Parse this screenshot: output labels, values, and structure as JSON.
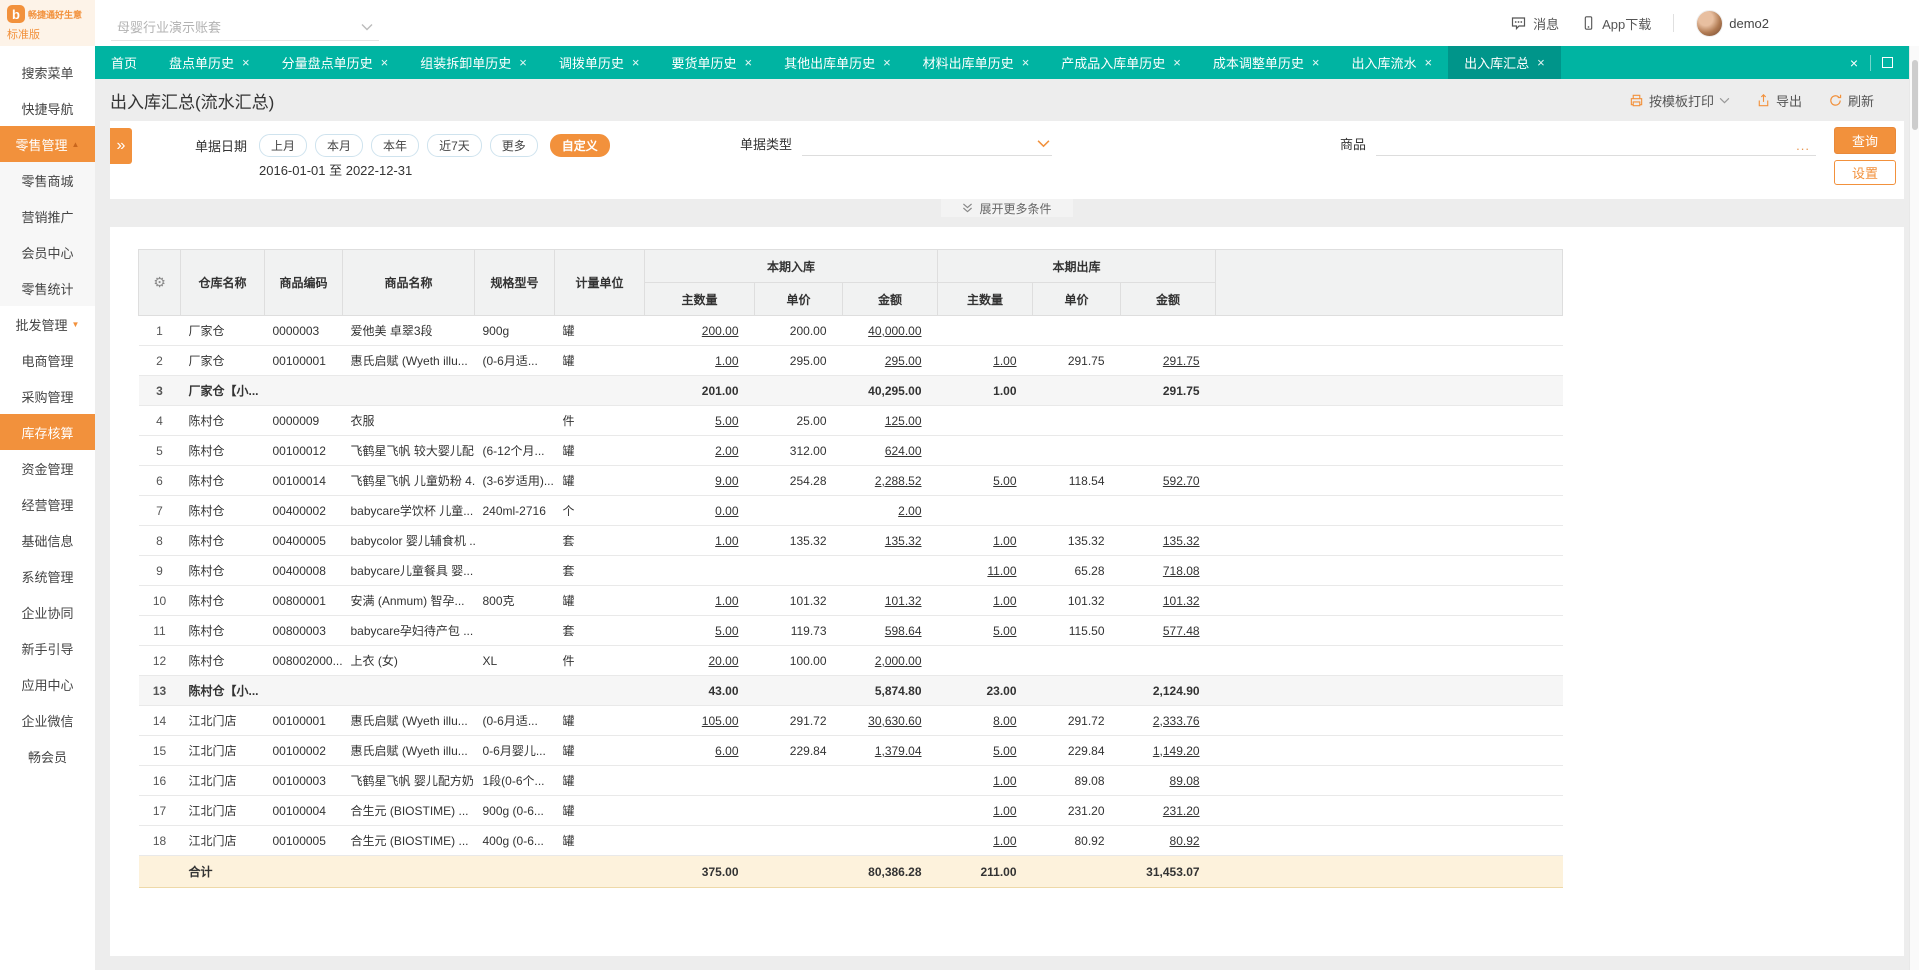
{
  "topbar": {
    "logo_title": "畅捷通好生意",
    "logo_subtitle": "标准版",
    "logo_glyph": "b",
    "account_name": "母婴行业演示账套",
    "messages_label": "消息",
    "app_download_label": "App下载",
    "username": "demo2"
  },
  "tabbar": {
    "tabs": [
      {
        "label": "首页",
        "closable": false,
        "active": false
      },
      {
        "label": "盘点单历史",
        "closable": true,
        "active": false
      },
      {
        "label": "分量盘点单历史",
        "closable": true,
        "active": false
      },
      {
        "label": "组装拆卸单历史",
        "closable": true,
        "active": false
      },
      {
        "label": "调拨单历史",
        "closable": true,
        "active": false
      },
      {
        "label": "要货单历史",
        "closable": true,
        "active": false
      },
      {
        "label": "其他出库单历史",
        "closable": true,
        "active": false
      },
      {
        "label": "材料出库单历史",
        "closable": true,
        "active": false
      },
      {
        "label": "产成品入库单历史",
        "closable": true,
        "active": false
      },
      {
        "label": "成本调整单历史",
        "closable": true,
        "active": false
      },
      {
        "label": "出入库流水",
        "closable": true,
        "active": false
      },
      {
        "label": "出入库汇总",
        "closable": true,
        "active": true
      }
    ],
    "close_all_icon": "×"
  },
  "sidebar": {
    "items": [
      {
        "label": "搜索菜单",
        "type": "plain"
      },
      {
        "label": "快捷导航",
        "type": "plain"
      },
      {
        "label": "零售管理",
        "type": "group-open"
      },
      {
        "label": "零售商城",
        "type": "sub"
      },
      {
        "label": "营销推广",
        "type": "sub"
      },
      {
        "label": "会员中心",
        "type": "sub"
      },
      {
        "label": "零售统计",
        "type": "sub"
      },
      {
        "label": "批发管理",
        "type": "group-closed"
      },
      {
        "label": "电商管理",
        "type": "plain"
      },
      {
        "label": "采购管理",
        "type": "plain"
      },
      {
        "label": "库存核算",
        "type": "active"
      },
      {
        "label": "资金管理",
        "type": "plain"
      },
      {
        "label": "经营管理",
        "type": "plain"
      },
      {
        "label": "基础信息",
        "type": "plain"
      },
      {
        "label": "系统管理",
        "type": "plain"
      },
      {
        "label": "企业协同",
        "type": "plain"
      },
      {
        "label": "新手引导",
        "type": "plain"
      },
      {
        "label": "应用中心",
        "type": "plain"
      },
      {
        "label": "企业微信",
        "type": "plain"
      },
      {
        "label": "畅会员",
        "type": "plain"
      }
    ]
  },
  "page": {
    "title": "出入库汇总(流水汇总)",
    "print_label": "按模板打印",
    "export_label": "导出",
    "refresh_label": "刷新"
  },
  "filters": {
    "date_label": "单据日期",
    "date_pills": [
      "上月",
      "本月",
      "本年",
      "近7天",
      "更多"
    ],
    "custom_pill": "自定义",
    "date_range": "2016-01-01 至 2022-12-31",
    "doc_type_label": "单据类型",
    "product_label": "商品",
    "product_more": "...",
    "query_button": "查询",
    "settings_button": "设置",
    "expand_more_label": "展开更多条件",
    "collapse_glyph": "»"
  },
  "colors": {
    "teal": "#00b4a2",
    "teal_active": "#00958a",
    "orange": "#f2913c",
    "total_row_bg": "#fdf2dc"
  },
  "table": {
    "icons": {
      "column_settings": "⚙"
    },
    "col_warehouse": "仓库名称",
    "col_code": "商品编码",
    "col_name": "商品名称",
    "col_spec": "规格型号",
    "col_unit": "计量单位",
    "group_in": "本期入库",
    "group_out": "本期出库",
    "col_qty": "主数量",
    "col_price": "单价",
    "col_amount": "金额",
    "rows": [
      {
        "type": "data",
        "n": "1",
        "wh": "厂家仓",
        "code": "0000003",
        "name": "爱他美 卓翠3段",
        "spec": "900g",
        "unit": "罐",
        "iq": "200.00",
        "ip": "200.00",
        "ia": "40,000.00",
        "oq": "",
        "op": "",
        "oa": ""
      },
      {
        "type": "data",
        "n": "2",
        "wh": "厂家仓",
        "code": "00100001",
        "name": "惠氏启赋 (Wyeth illu...",
        "spec": "(0-6月适...",
        "unit": "罐",
        "iq": "1.00",
        "ip": "295.00",
        "ia": "295.00",
        "oq": "1.00",
        "op": "291.75",
        "oa": "291.75"
      },
      {
        "type": "subtotal",
        "n": "3",
        "wh": "厂家仓【小...",
        "code": "",
        "name": "",
        "spec": "",
        "unit": "",
        "iq": "201.00",
        "ip": "",
        "ia": "40,295.00",
        "oq": "1.00",
        "op": "",
        "oa": "291.75"
      },
      {
        "type": "data",
        "n": "4",
        "wh": "陈村仓",
        "code": "0000009",
        "name": "衣服",
        "spec": "",
        "unit": "件",
        "iq": "5.00",
        "ip": "25.00",
        "ia": "125.00",
        "oq": "",
        "op": "",
        "oa": ""
      },
      {
        "type": "data",
        "n": "5",
        "wh": "陈村仓",
        "code": "00100012",
        "name": "飞鹤星飞帆 较大婴儿配...",
        "spec": "(6-12个月...",
        "unit": "罐",
        "iq": "2.00",
        "ip": "312.00",
        "ia": "624.00",
        "oq": "",
        "op": "",
        "oa": ""
      },
      {
        "type": "data",
        "n": "6",
        "wh": "陈村仓",
        "code": "00100014",
        "name": "飞鹤星飞帆 儿童奶粉 4...",
        "spec": "(3-6岁适用)...",
        "unit": "罐",
        "iq": "9.00",
        "ip": "254.28",
        "ia": "2,288.52",
        "oq": "5.00",
        "op": "118.54",
        "oa": "592.70"
      },
      {
        "type": "data",
        "n": "7",
        "wh": "陈村仓",
        "code": "00400002",
        "name": "babycare学饮杯 儿童...",
        "spec": "240ml-2716",
        "unit": "个",
        "iq": "0.00",
        "ip": "",
        "ia": "2.00",
        "oq": "",
        "op": "",
        "oa": ""
      },
      {
        "type": "data",
        "n": "8",
        "wh": "陈村仓",
        "code": "00400005",
        "name": "babycolor 婴儿辅食机 ...",
        "spec": "",
        "unit": "套",
        "iq": "1.00",
        "ip": "135.32",
        "ia": "135.32",
        "oq": "1.00",
        "op": "135.32",
        "oa": "135.32"
      },
      {
        "type": "data",
        "n": "9",
        "wh": "陈村仓",
        "code": "00400008",
        "name": "babycare儿童餐具 婴...",
        "spec": "",
        "unit": "套",
        "iq": "",
        "ip": "",
        "ia": "",
        "oq": "11.00",
        "op": "65.28",
        "oa": "718.08"
      },
      {
        "type": "data",
        "n": "10",
        "wh": "陈村仓",
        "code": "00800001",
        "name": "安满 (Anmum) 智孕...",
        "spec": "800克",
        "unit": "罐",
        "iq": "1.00",
        "ip": "101.32",
        "ia": "101.32",
        "oq": "1.00",
        "op": "101.32",
        "oa": "101.32"
      },
      {
        "type": "data",
        "n": "11",
        "wh": "陈村仓",
        "code": "00800003",
        "name": "babycare孕妇待产包 ...",
        "spec": "",
        "unit": "套",
        "iq": "5.00",
        "ip": "119.73",
        "ia": "598.64",
        "oq": "5.00",
        "op": "115.50",
        "oa": "577.48"
      },
      {
        "type": "data",
        "n": "12",
        "wh": "陈村仓",
        "code": "008002000...",
        "name": "上衣 (女)",
        "spec": "XL",
        "unit": "件",
        "iq": "20.00",
        "ip": "100.00",
        "ia": "2,000.00",
        "oq": "",
        "op": "",
        "oa": ""
      },
      {
        "type": "subtotal",
        "n": "13",
        "wh": "陈村仓【小...",
        "code": "",
        "name": "",
        "spec": "",
        "unit": "",
        "iq": "43.00",
        "ip": "",
        "ia": "5,874.80",
        "oq": "23.00",
        "op": "",
        "oa": "2,124.90"
      },
      {
        "type": "data",
        "n": "14",
        "wh": "江北门店",
        "code": "00100001",
        "name": "惠氏启赋 (Wyeth illu...",
        "spec": "(0-6月适...",
        "unit": "罐",
        "iq": "105.00",
        "ip": "291.72",
        "ia": "30,630.60",
        "oq": "8.00",
        "op": "291.72",
        "oa": "2,333.76"
      },
      {
        "type": "data",
        "n": "15",
        "wh": "江北门店",
        "code": "00100002",
        "name": "惠氏启赋 (Wyeth illu...",
        "spec": "0-6月婴儿...",
        "unit": "罐",
        "iq": "6.00",
        "ip": "229.84",
        "ia": "1,379.04",
        "oq": "5.00",
        "op": "229.84",
        "oa": "1,149.20"
      },
      {
        "type": "data",
        "n": "16",
        "wh": "江北门店",
        "code": "00100003",
        "name": "飞鹤星飞帆 婴儿配方奶...",
        "spec": "1段(0-6个...",
        "unit": "罐",
        "iq": "",
        "ip": "",
        "ia": "",
        "oq": "1.00",
        "op": "89.08",
        "oa": "89.08"
      },
      {
        "type": "data",
        "n": "17",
        "wh": "江北门店",
        "code": "00100004",
        "name": "合生元 (BIOSTIME) ...",
        "spec": "900g (0-6...",
        "unit": "罐",
        "iq": "",
        "ip": "",
        "ia": "",
        "oq": "1.00",
        "op": "231.20",
        "oa": "231.20"
      },
      {
        "type": "data",
        "n": "18",
        "wh": "江北门店",
        "code": "00100005",
        "name": "合生元 (BIOSTIME) ...",
        "spec": "400g (0-6...",
        "unit": "罐",
        "iq": "",
        "ip": "",
        "ia": "",
        "oq": "1.00",
        "op": "80.92",
        "oa": "80.92"
      }
    ],
    "total": {
      "label": "合计",
      "iq": "375.00",
      "ip": "",
      "ia": "80,386.28",
      "oq": "211.00",
      "op": "",
      "oa": "31,453.07"
    }
  }
}
